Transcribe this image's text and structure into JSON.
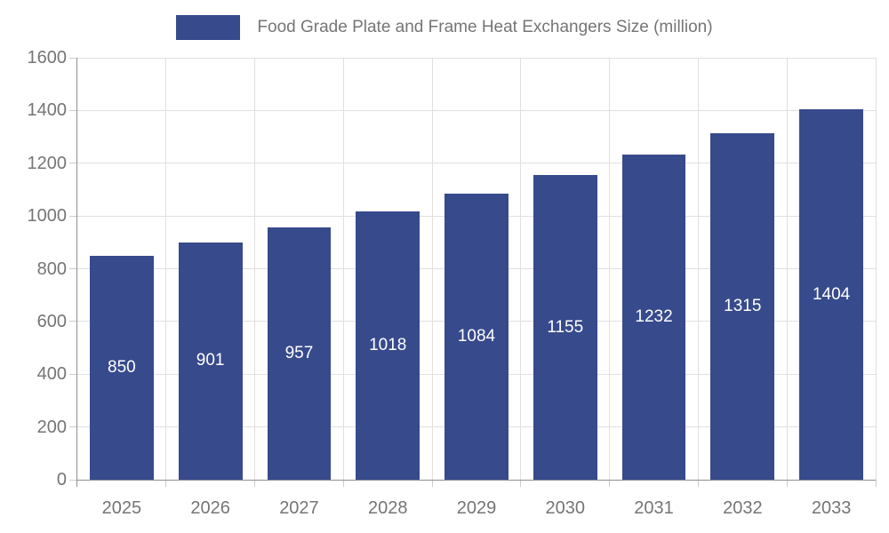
{
  "chart_data": {
    "type": "bar",
    "title": "Food Grade Plate and Frame Heat Exchangers Size (million)",
    "series_name": "Food Grade Plate and Frame Heat Exchangers Size (million)",
    "categories": [
      "2025",
      "2026",
      "2027",
      "2028",
      "2029",
      "2030",
      "2031",
      "2032",
      "2033"
    ],
    "values": [
      850,
      901,
      957,
      1018,
      1084,
      1155,
      1232,
      1315,
      1404
    ],
    "xlabel": "",
    "ylabel": "",
    "ylim": [
      0,
      1600
    ],
    "yticks": [
      0,
      200,
      400,
      600,
      800,
      1000,
      1200,
      1400,
      1600
    ],
    "grid": true,
    "legend_position": "top-center",
    "value_labels": "inside-center",
    "colors": {
      "bar": "#374A8C",
      "grid": "#E0E0E0",
      "tick": "#CCCCCC",
      "axis_line": "#909090",
      "axis_text": "#757575",
      "value_label_text": "#FFFFFF",
      "background": "#FFFFFF"
    }
  }
}
